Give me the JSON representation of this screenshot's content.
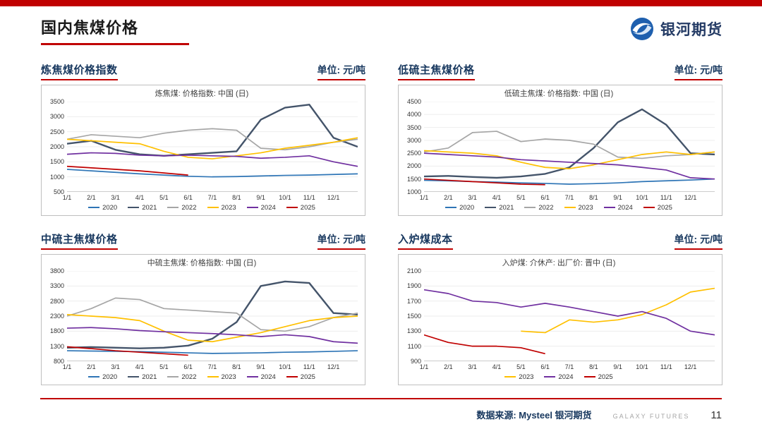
{
  "page": {
    "title": "国内焦煤价格",
    "logo": {
      "text": "银河期货"
    },
    "footer": {
      "source": "数据来源: Mysteel 银河期货",
      "brand": "GALAXY FUTURES",
      "page_number": "11"
    }
  },
  "colors": {
    "accent_red": "#C00000",
    "title_blue": "#17375E",
    "series": {
      "2020": "#2E75B6",
      "2021": "#44546A",
      "2022": "#A6A6A6",
      "2023": "#FFC000",
      "2024": "#7030A0",
      "2025": "#C00000"
    }
  },
  "chart_data": [
    {
      "type": "line",
      "header": "炼焦煤价格指数",
      "unit": "单位: 元/吨",
      "title": "炼焦煤: 价格指数: 中国 (日)",
      "ylim": [
        500,
        3500
      ],
      "y_ticks": [
        500,
        1000,
        1500,
        2000,
        2500,
        3000,
        3500
      ],
      "x_ticks": [
        "1/1",
        "2/1",
        "3/1",
        "4/1",
        "5/1",
        "6/1",
        "7/1",
        "8/1",
        "9/1",
        "10/1",
        "11/1",
        "12/1"
      ],
      "domain": 12,
      "legend_position": "bottom",
      "series": [
        {
          "name": "2020",
          "values": [
            1250,
            1200,
            1150,
            1100,
            1060,
            1020,
            1000,
            1010,
            1030,
            1050,
            1060,
            1080,
            1100
          ]
        },
        {
          "name": "2021",
          "values": [
            2100,
            2200,
            1900,
            1750,
            1700,
            1750,
            1800,
            1850,
            2900,
            3300,
            3400,
            2300,
            2000
          ]
        },
        {
          "name": "2022",
          "values": [
            2250,
            2400,
            2350,
            2300,
            2450,
            2550,
            2600,
            2550,
            1950,
            1900,
            2000,
            2150,
            2250
          ]
        },
        {
          "name": "2023",
          "values": [
            2250,
            2200,
            2150,
            2100,
            1850,
            1650,
            1600,
            1700,
            1800,
            1950,
            2050,
            2150,
            2300
          ]
        },
        {
          "name": "2024",
          "values": [
            1750,
            1800,
            1780,
            1720,
            1700,
            1720,
            1700,
            1680,
            1620,
            1650,
            1700,
            1500,
            1350
          ]
        },
        {
          "name": "2025",
          "values": [
            1350,
            1300,
            1250,
            1200,
            1130,
            1060
          ]
        }
      ]
    },
    {
      "type": "line",
      "header": "低硫主焦煤价格",
      "unit": "单位: 元/吨",
      "title": "低硫主焦煤: 价格指数: 中国 (日)",
      "ylim": [
        1000,
        4500
      ],
      "y_ticks": [
        1000,
        1500,
        2000,
        2500,
        3000,
        3500,
        4000,
        4500
      ],
      "x_ticks": [
        "1/1",
        "2/1",
        "3/1",
        "4/1",
        "5/1",
        "6/1",
        "7/1",
        "8/1",
        "9/1",
        "10/1",
        "11/1",
        "12/1"
      ],
      "domain": 12,
      "legend_position": "bottom",
      "series": [
        {
          "name": "2020",
          "values": [
            1450,
            1430,
            1400,
            1380,
            1350,
            1330,
            1300,
            1320,
            1350,
            1400,
            1430,
            1460,
            1500
          ]
        },
        {
          "name": "2021",
          "values": [
            1600,
            1620,
            1580,
            1550,
            1600,
            1700,
            1950,
            2700,
            3700,
            4200,
            3600,
            2500,
            2450
          ]
        },
        {
          "name": "2022",
          "values": [
            2550,
            2700,
            3300,
            3350,
            2950,
            3050,
            3000,
            2850,
            2350,
            2300,
            2400,
            2450,
            2550
          ]
        },
        {
          "name": "2023",
          "values": [
            2600,
            2550,
            2500,
            2400,
            2150,
            1950,
            1900,
            2050,
            2250,
            2450,
            2550,
            2450,
            2550
          ]
        },
        {
          "name": "2024",
          "values": [
            2500,
            2450,
            2400,
            2350,
            2250,
            2200,
            2150,
            2100,
            2050,
            1950,
            1850,
            1550,
            1500
          ]
        },
        {
          "name": "2025",
          "values": [
            1500,
            1450,
            1400,
            1350,
            1300,
            1280
          ]
        }
      ]
    },
    {
      "type": "line",
      "header": "中硫主焦煤价格",
      "unit": "单位: 元/吨",
      "title": "中硫主焦煤: 价格指数: 中国 (日)",
      "ylim": [
        800,
        3800
      ],
      "y_ticks": [
        800,
        1300,
        1800,
        2300,
        2800,
        3300,
        3800
      ],
      "x_ticks": [
        "1/1",
        "2/1",
        "3/1",
        "4/1",
        "5/1",
        "6/1",
        "7/1",
        "8/1",
        "9/1",
        "10/1",
        "11/1",
        "12/1"
      ],
      "domain": 12,
      "legend_position": "bottom",
      "series": [
        {
          "name": "2020",
          "values": [
            1150,
            1140,
            1130,
            1120,
            1100,
            1080,
            1060,
            1070,
            1080,
            1100,
            1110,
            1130,
            1150
          ]
        },
        {
          "name": "2021",
          "values": [
            1250,
            1270,
            1250,
            1230,
            1250,
            1320,
            1550,
            2100,
            3300,
            3450,
            3400,
            2400,
            2350
          ]
        },
        {
          "name": "2022",
          "values": [
            2300,
            2550,
            2900,
            2850,
            2550,
            2500,
            2450,
            2400,
            1850,
            1800,
            1950,
            2250,
            2400
          ]
        },
        {
          "name": "2023",
          "values": [
            2350,
            2300,
            2250,
            2150,
            1800,
            1500,
            1450,
            1600,
            1750,
            1950,
            2150,
            2250,
            2300
          ]
        },
        {
          "name": "2024",
          "values": [
            1900,
            1920,
            1880,
            1820,
            1780,
            1750,
            1720,
            1680,
            1620,
            1680,
            1620,
            1450,
            1400
          ]
        },
        {
          "name": "2025",
          "values": [
            1280,
            1220,
            1150,
            1100,
            1050,
            1000
          ]
        }
      ]
    },
    {
      "type": "line",
      "header": "入炉煤成本",
      "unit": "单位: 元/吨",
      "title": "入炉煤: 介休产: 出厂价: 晋中 (日)",
      "ylim": [
        900,
        2100
      ],
      "y_ticks": [
        900,
        1100,
        1300,
        1500,
        1700,
        1900,
        2100
      ],
      "x_ticks": [
        "1/1",
        "2/1",
        "3/1",
        "4/1",
        "5/1",
        "6/1",
        "7/1",
        "8/1",
        "9/1",
        "10/1",
        "11/1",
        "12/1"
      ],
      "domain": 12,
      "legend_position": "bottom",
      "series": [
        {
          "name": "2023",
          "values": [
            null,
            null,
            null,
            null,
            1300,
            1280,
            1450,
            1420,
            1450,
            1520,
            1650,
            1820,
            1870
          ]
        },
        {
          "name": "2024",
          "values": [
            1850,
            1800,
            1700,
            1680,
            1620,
            1670,
            1620,
            1560,
            1500,
            1560,
            1470,
            1300,
            1250
          ]
        },
        {
          "name": "2025",
          "values": [
            1250,
            1150,
            1100,
            1100,
            1080,
            1000
          ]
        }
      ]
    }
  ]
}
